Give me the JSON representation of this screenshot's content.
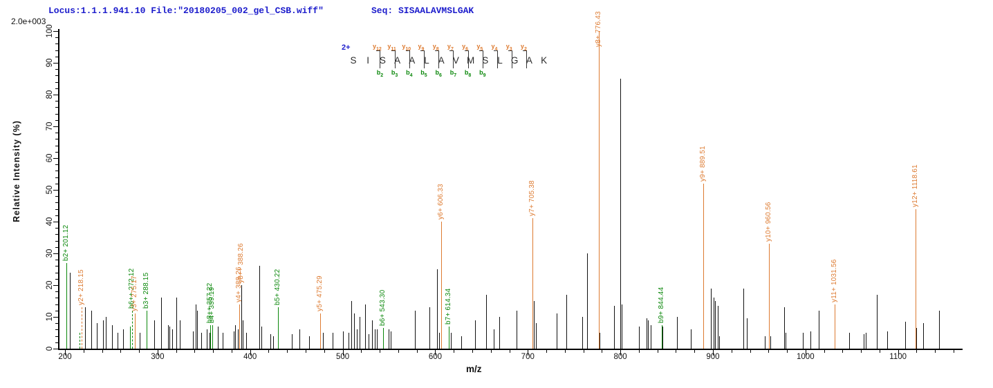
{
  "header": {
    "locus_file": "Locus:1.1.1.941.10 File:\"20180205_002_gel_CSB.wiff\"",
    "seq": "Seq: SISAALAVMSLGAK"
  },
  "y_axis_scale": "2.0e+003",
  "precursor_charge": "2+",
  "peptide": {
    "sequence": "SISAALAVMSLGAK",
    "cleavages": [
      {
        "after": 2,
        "y": "y12",
        "b": "b2"
      },
      {
        "after": 3,
        "y": "y11",
        "b": "b3"
      },
      {
        "after": 4,
        "y": "y10",
        "b": "b4"
      },
      {
        "after": 5,
        "y": "y9",
        "b": "b5"
      },
      {
        "after": 6,
        "y": "y8",
        "b": "b6"
      },
      {
        "after": 7,
        "y": "y7",
        "b": "b7"
      },
      {
        "after": 8,
        "y": "y6",
        "b": "b8"
      },
      {
        "after": 9,
        "y": "y5",
        "b": "b9"
      },
      {
        "after": 10,
        "y": "y4"
      },
      {
        "after": 11,
        "y": "y3"
      },
      {
        "after": 12,
        "y": "y2"
      }
    ]
  },
  "chart_data": {
    "type": "bar",
    "subtype": "ms2-peptide-fragmentation-spectrum",
    "xlabel": "m/z",
    "ylabel": "Relative  Intensity (%)",
    "xlim": [
      194,
      1166
    ],
    "ylim": [
      0,
      100
    ],
    "x_major_ticks": [
      200,
      300,
      400,
      500,
      600,
      700,
      800,
      900,
      1000,
      1100
    ],
    "x_minor_step": 20,
    "y_major_step": 10,
    "y_minor_step": 2,
    "annotated_peaks": [
      {
        "ion": "b2+",
        "mz": 201.12,
        "h": 27,
        "s": "b"
      },
      {
        "ion": "y2+",
        "mz": 218.15,
        "h": 13,
        "s": "y",
        "dashed": true
      },
      {
        "ion": "b6++",
        "mz": 272.12,
        "h": 12,
        "s": "b",
        "dashed": true
      },
      {
        "ion": "y3+",
        "mz": 275.17,
        "h": 11,
        "s": "y"
      },
      {
        "ion": "b3+",
        "mz": 288.15,
        "h": 12,
        "s": "b"
      },
      {
        "ion": "b8++",
        "mz": 357.22,
        "h": 7.5,
        "s": "b"
      },
      {
        "ion": "b4+",
        "mz": 359.19,
        "h": 7.5,
        "s": "b"
      },
      {
        "ion": "y4+",
        "mz": 388.26,
        "h": 14,
        "s": "y"
      },
      {
        "ion": "y8++",
        "mz": 388.26,
        "h": 20,
        "s": "y",
        "display_mz": 390.5,
        "peak_color": "black"
      },
      {
        "ion": "b5+",
        "mz": 430.22,
        "h": 13,
        "s": "b"
      },
      {
        "ion": "y5+",
        "mz": 475.29,
        "h": 11,
        "s": "y"
      },
      {
        "ion": "b6+",
        "mz": 543.3,
        "h": 6.5,
        "s": "b"
      },
      {
        "ion": "y6+",
        "mz": 606.33,
        "h": 40,
        "s": "y"
      },
      {
        "ion": "b7+",
        "mz": 614.34,
        "h": 7,
        "s": "b"
      },
      {
        "ion": "y7+",
        "mz": 705.38,
        "h": 41,
        "s": "y"
      },
      {
        "ion": "y8+",
        "mz": 776.43,
        "h": 100,
        "s": "y"
      },
      {
        "ion": "b9+",
        "mz": 844.44,
        "h": 7.5,
        "s": "b"
      },
      {
        "ion": "y9+",
        "mz": 889.51,
        "h": 52,
        "s": "y"
      },
      {
        "ion": "y10+",
        "mz": 960.56,
        "h": 33,
        "s": "y"
      },
      {
        "ion": "y11+",
        "mz": 1031.56,
        "h": 14,
        "s": "y"
      },
      {
        "ion": "y12+",
        "mz": 1118.61,
        "h": 44,
        "s": "y"
      }
    ],
    "unannotated_green_peaks": [
      {
        "mz": 215.6,
        "h": 5,
        "dashed": true
      },
      {
        "mz": 270.3,
        "h": 7
      }
    ],
    "unannotated_peaks": [
      [
        205,
        24
      ],
      [
        222,
        13
      ],
      [
        228,
        12
      ],
      [
        234,
        8
      ],
      [
        241,
        9
      ],
      [
        244,
        10
      ],
      [
        251,
        7.5
      ],
      [
        257,
        5
      ],
      [
        263,
        6
      ],
      [
        281,
        5
      ],
      [
        296,
        9
      ],
      [
        304,
        16
      ],
      [
        311,
        7.5
      ],
      [
        313,
        7
      ],
      [
        316,
        6
      ],
      [
        320,
        16
      ],
      [
        324,
        9
      ],
      [
        338,
        5.5
      ],
      [
        341,
        14
      ],
      [
        343,
        12
      ],
      [
        347,
        5
      ],
      [
        353,
        6
      ],
      [
        356,
        5
      ],
      [
        365,
        7
      ],
      [
        370,
        5
      ],
      [
        382,
        5.5
      ],
      [
        384,
        7.5
      ],
      [
        386.5,
        6
      ],
      [
        392,
        9
      ],
      [
        396,
        5
      ],
      [
        410,
        26
      ],
      [
        412.5,
        7
      ],
      [
        422,
        4.5
      ],
      [
        425,
        4
      ],
      [
        445,
        4.5
      ],
      [
        453,
        6
      ],
      [
        464,
        4
      ],
      [
        479,
        5
      ],
      [
        489,
        5
      ],
      [
        500,
        5.5
      ],
      [
        506,
        5
      ],
      [
        509,
        15
      ],
      [
        512,
        11
      ],
      [
        515,
        6
      ],
      [
        518,
        10
      ],
      [
        524,
        14
      ],
      [
        528,
        4.5
      ],
      [
        532,
        9
      ],
      [
        535,
        6
      ],
      [
        537,
        6
      ],
      [
        550,
        6
      ],
      [
        552,
        5.5
      ],
      [
        578,
        12
      ],
      [
        594,
        13
      ],
      [
        602,
        25
      ],
      [
        604,
        5
      ],
      [
        617,
        5
      ],
      [
        628,
        4
      ],
      [
        643,
        9
      ],
      [
        655,
        17
      ],
      [
        663,
        6
      ],
      [
        669,
        10
      ],
      [
        688,
        12
      ],
      [
        706.5,
        15
      ],
      [
        709,
        8
      ],
      [
        731,
        11
      ],
      [
        742,
        17
      ],
      [
        759,
        10
      ],
      [
        764,
        30
      ],
      [
        777.5,
        5
      ],
      [
        793,
        13.5
      ],
      [
        800,
        85
      ],
      [
        801.5,
        14
      ],
      [
        820,
        7
      ],
      [
        828,
        9.5
      ],
      [
        830,
        9
      ],
      [
        833,
        7.5
      ],
      [
        845.5,
        7
      ],
      [
        861,
        10
      ],
      [
        876,
        6
      ],
      [
        898,
        19
      ],
      [
        900.5,
        16
      ],
      [
        902,
        15
      ],
      [
        905,
        13.5
      ],
      [
        907,
        4
      ],
      [
        933,
        19
      ],
      [
        937,
        9.5
      ],
      [
        956,
        4
      ],
      [
        962,
        4
      ],
      [
        977,
        13
      ],
      [
        978.5,
        5
      ],
      [
        997,
        5
      ],
      [
        1005,
        5.5
      ],
      [
        1014,
        12
      ],
      [
        1047,
        5
      ],
      [
        1063,
        4.5
      ],
      [
        1065,
        5
      ],
      [
        1077,
        17
      ],
      [
        1088,
        5.5
      ],
      [
        1108,
        8.5
      ],
      [
        1119.5,
        6.5
      ],
      [
        1127,
        8
      ],
      [
        1144,
        12
      ]
    ]
  },
  "colors": {
    "b_ion": "#0a870a",
    "y_ion": "#dd7a30",
    "peak": "#101010",
    "header_text": "#1c1ccc",
    "axis": "#000000"
  }
}
